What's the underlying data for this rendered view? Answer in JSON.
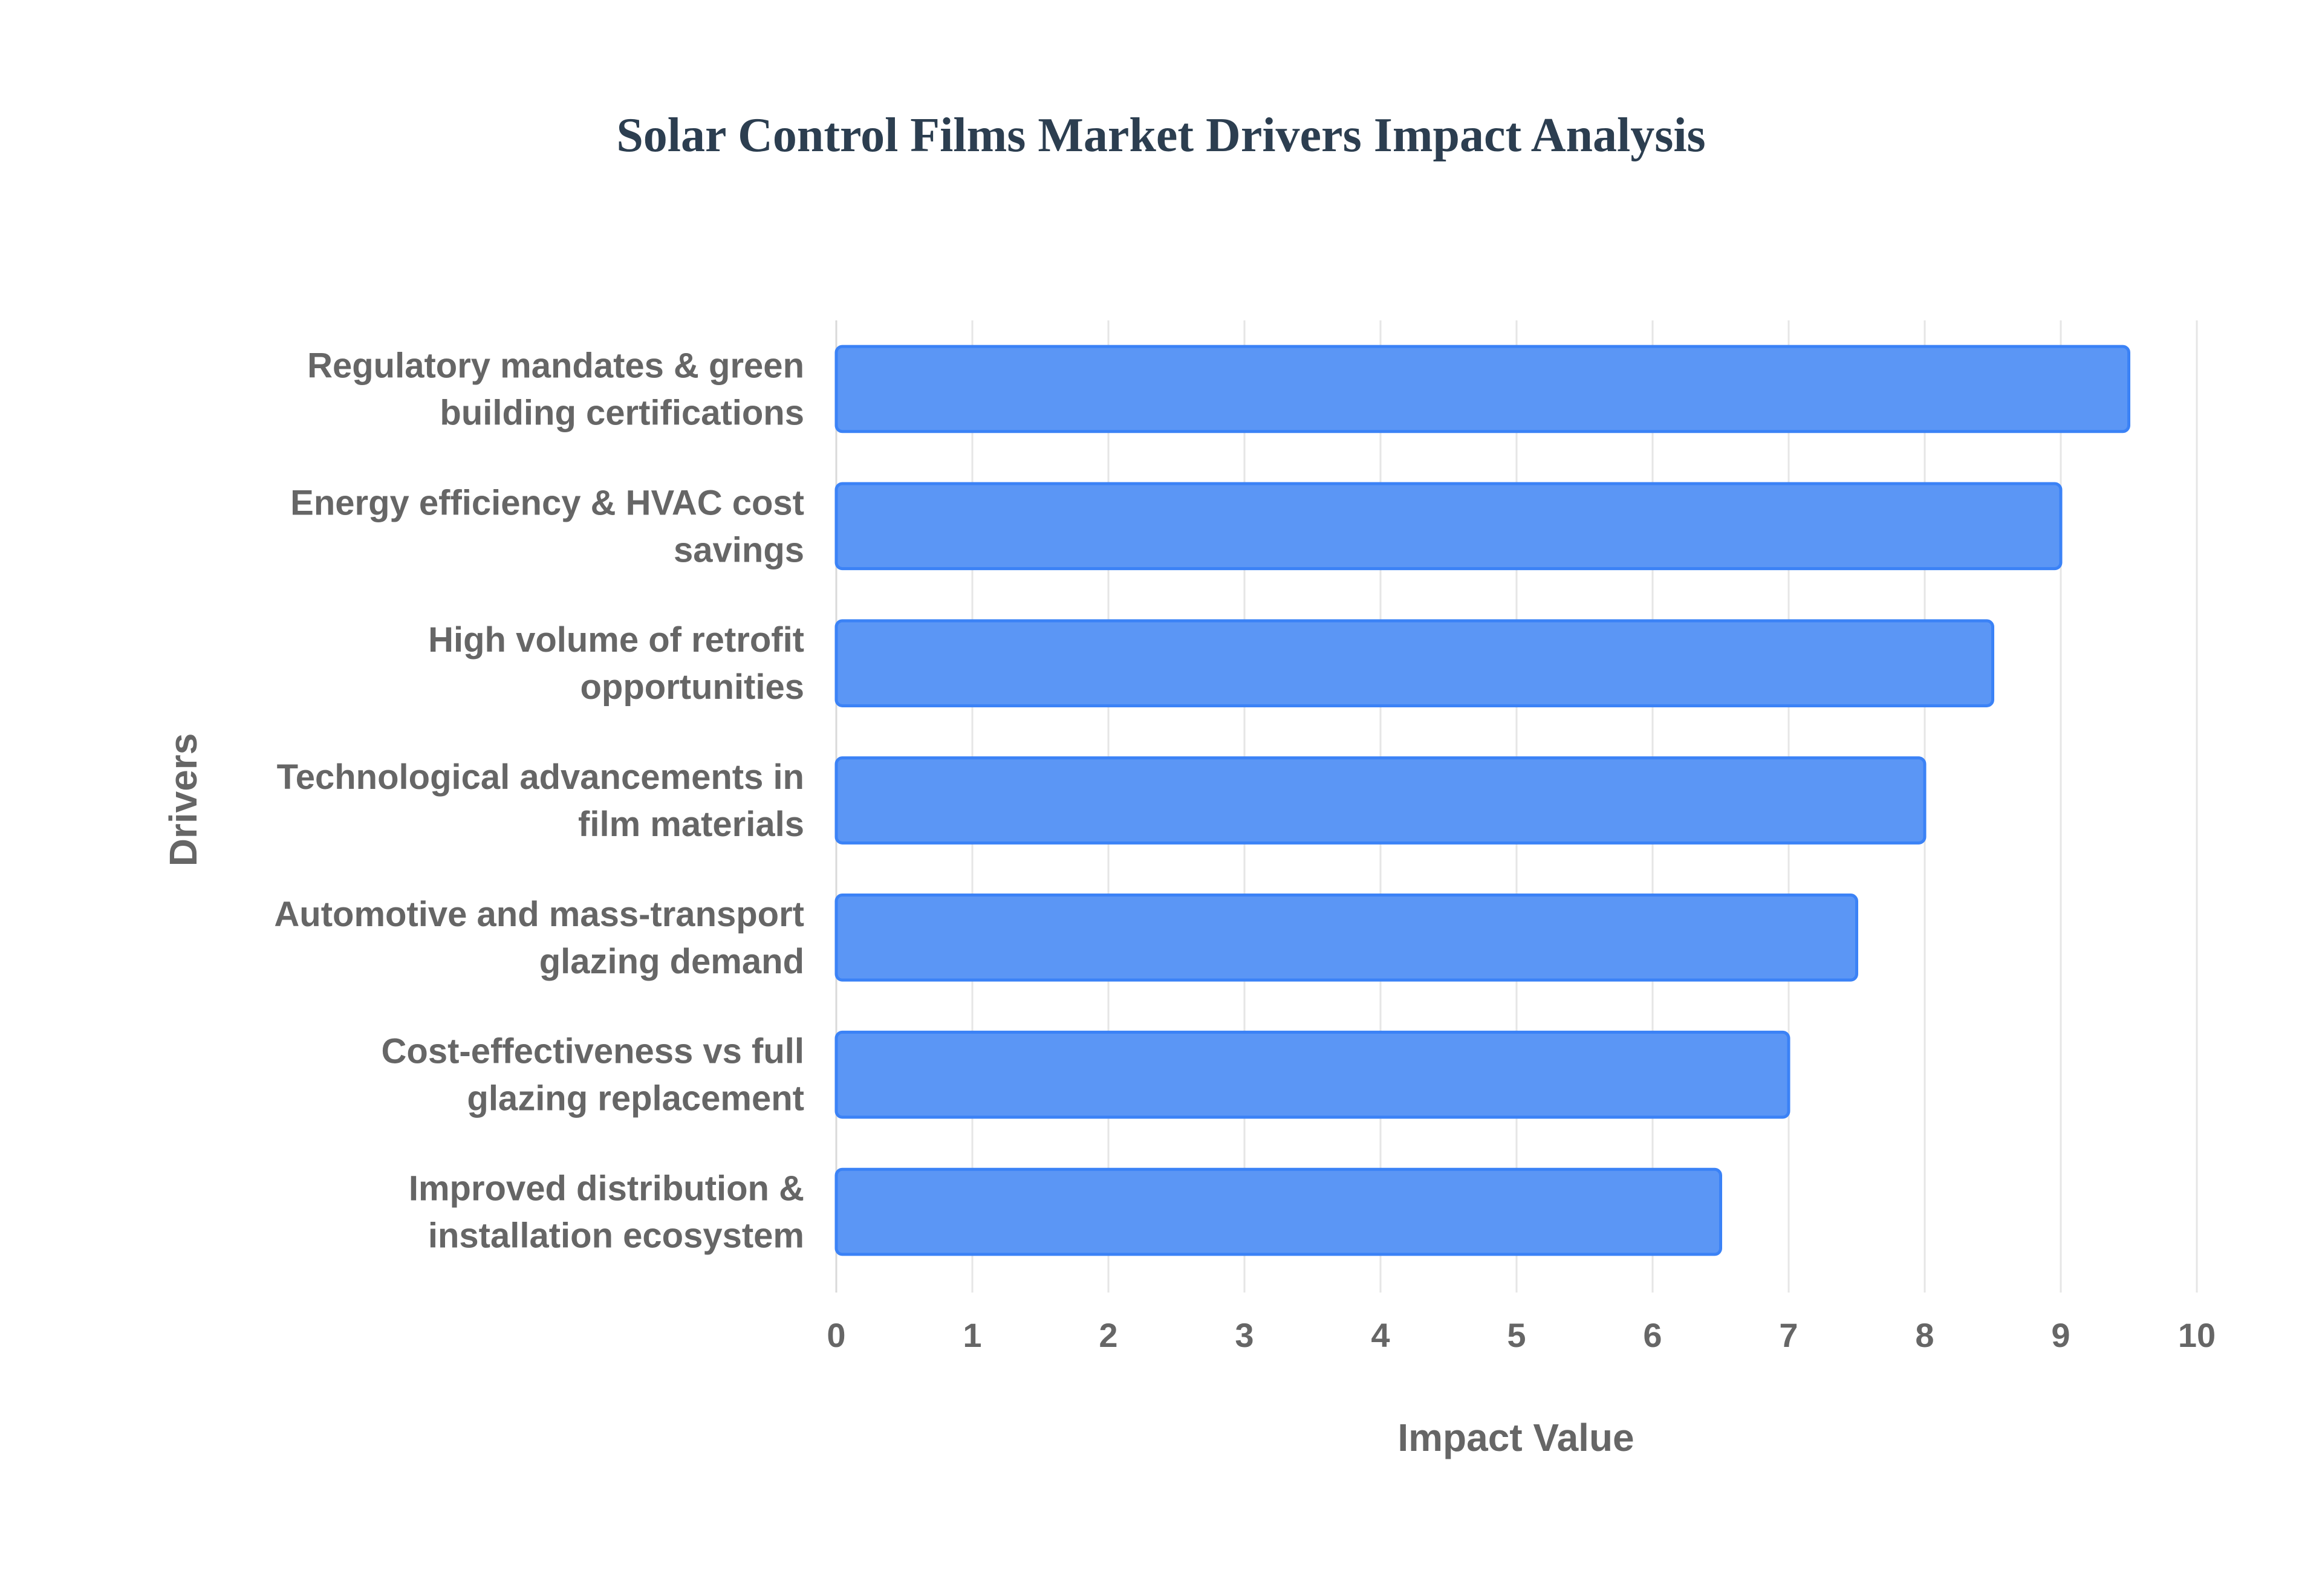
{
  "chart_data": {
    "type": "bar",
    "orientation": "horizontal",
    "title": "Solar Control Films Market Drivers Impact Analysis",
    "xlabel": "Impact Value",
    "ylabel": "Drivers",
    "xlim": [
      0,
      10
    ],
    "xticks": [
      0,
      1,
      2,
      3,
      4,
      5,
      6,
      7,
      8,
      9,
      10
    ],
    "grid": true,
    "legend": "none",
    "categories": [
      [
        "Regulatory mandates & green",
        "building certifications"
      ],
      [
        "Energy efficiency & HVAC cost",
        "savings"
      ],
      [
        "High volume of retrofit",
        "opportunities"
      ],
      [
        "Technological advancements in",
        "film materials"
      ],
      [
        "Automotive and mass-transport",
        "glazing demand"
      ],
      [
        "Cost-effectiveness vs full",
        "glazing replacement"
      ],
      [
        "Improved distribution &",
        "installation ecosystem"
      ]
    ],
    "values": [
      9.5,
      9.0,
      8.5,
      8.0,
      7.5,
      7.0,
      6.5
    ],
    "colors": {
      "bar_fill": "#5b96f5",
      "bar_stroke": "#3b82f6",
      "title": "#2c3e50",
      "text": "#666666"
    }
  }
}
